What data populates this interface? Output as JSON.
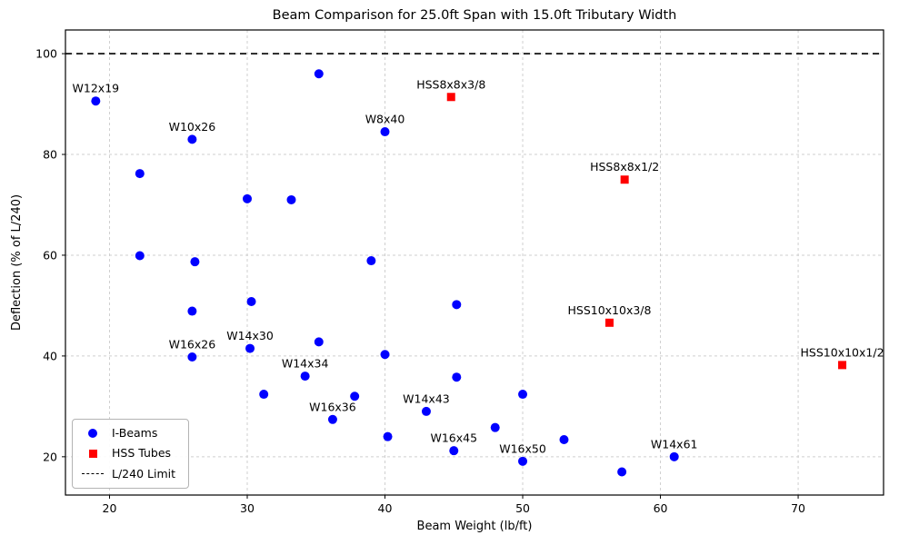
{
  "chart_data": {
    "type": "scatter",
    "title": "Beam Comparison for 25.0ft Span with 15.0ft Tributary Width",
    "xlabel": "Beam Weight (lb/ft)",
    "ylabel": "Deflection (% of L/240)",
    "xlim": [
      16.8,
      76.2
    ],
    "ylim": [
      12.4,
      104.7
    ],
    "xticks": [
      20,
      30,
      40,
      50,
      60,
      70
    ],
    "yticks": [
      20,
      40,
      60,
      80,
      100
    ],
    "grid": true,
    "limit_line": {
      "y": 100,
      "label": "L/240 Limit",
      "color": "#000000",
      "style": "dashed"
    },
    "series": [
      {
        "name": "I-Beams",
        "marker": "circle",
        "color": "#0000ff",
        "points": [
          {
            "x": 19.0,
            "y": 90.6,
            "label": "W12x19"
          },
          {
            "x": 22.2,
            "y": 76.2
          },
          {
            "x": 22.2,
            "y": 59.9
          },
          {
            "x": 26.0,
            "y": 83.0,
            "label": "W10x26"
          },
          {
            "x": 26.2,
            "y": 58.7
          },
          {
            "x": 26.0,
            "y": 48.9
          },
          {
            "x": 26.0,
            "y": 39.8,
            "label": "W16x26"
          },
          {
            "x": 30.0,
            "y": 71.2
          },
          {
            "x": 30.3,
            "y": 50.8
          },
          {
            "x": 30.2,
            "y": 41.5,
            "label": "W14x30"
          },
          {
            "x": 31.2,
            "y": 32.4
          },
          {
            "x": 33.2,
            "y": 71.0
          },
          {
            "x": 34.2,
            "y": 36.0,
            "label": "W14x34"
          },
          {
            "x": 35.2,
            "y": 96.0
          },
          {
            "x": 35.2,
            "y": 42.8
          },
          {
            "x": 36.2,
            "y": 27.4,
            "label": "W16x36"
          },
          {
            "x": 37.8,
            "y": 32.0
          },
          {
            "x": 39.0,
            "y": 58.9
          },
          {
            "x": 40.0,
            "y": 84.5,
            "label": "W8x40"
          },
          {
            "x": 40.0,
            "y": 40.3
          },
          {
            "x": 40.2,
            "y": 24.0
          },
          {
            "x": 43.0,
            "y": 29.0,
            "label": "W14x43"
          },
          {
            "x": 45.2,
            "y": 50.2
          },
          {
            "x": 45.2,
            "y": 35.8
          },
          {
            "x": 45.0,
            "y": 21.2,
            "label": "W16x45"
          },
          {
            "x": 48.0,
            "y": 25.8
          },
          {
            "x": 50.0,
            "y": 32.4
          },
          {
            "x": 50.0,
            "y": 19.1,
            "label": "W16x50"
          },
          {
            "x": 53.0,
            "y": 23.4
          },
          {
            "x": 57.2,
            "y": 17.0
          },
          {
            "x": 61.0,
            "y": 20.0,
            "label": "W14x61"
          }
        ]
      },
      {
        "name": "HSS Tubes",
        "marker": "square",
        "color": "#ff0000",
        "points": [
          {
            "x": 44.8,
            "y": 91.4,
            "label": "HSS8x8x3/8"
          },
          {
            "x": 57.4,
            "y": 75.0,
            "label": "HSS8x8x1/2"
          },
          {
            "x": 56.3,
            "y": 46.6,
            "label": "HSS10x10x3/8"
          },
          {
            "x": 73.2,
            "y": 38.2,
            "label": "HSS10x10x1/2"
          }
        ]
      }
    ],
    "legend": {
      "position": "lower left",
      "entries": [
        {
          "label": "I-Beams",
          "marker": "circle",
          "color": "#0000ff"
        },
        {
          "label": "HSS Tubes",
          "marker": "square",
          "color": "#ff0000"
        },
        {
          "label": "L/240 Limit",
          "marker": "dash",
          "color": "#000000"
        }
      ]
    }
  }
}
